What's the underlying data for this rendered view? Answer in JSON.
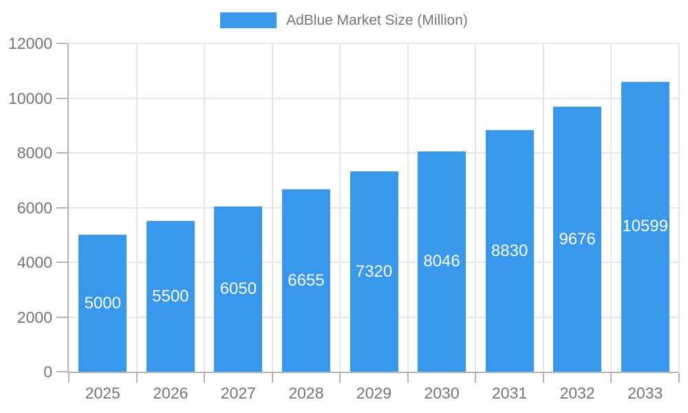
{
  "chart_data": {
    "type": "bar",
    "title": "AdBlue Market Size (Million)",
    "categories": [
      "2025",
      "2026",
      "2027",
      "2028",
      "2029",
      "2030",
      "2031",
      "2032",
      "2033"
    ],
    "values": [
      5000,
      5500,
      6050,
      6655,
      7320,
      8046,
      8830,
      9676,
      10599
    ],
    "value_labels": [
      "5000",
      "5500",
      "6050",
      "6655",
      "7320",
      "8046",
      "8830",
      "9676",
      "10599"
    ],
    "xlabel": "",
    "ylabel": "",
    "ylim": [
      0,
      12000
    ],
    "ytick_step": 2000,
    "ytick_labels": [
      "0",
      "2000",
      "4000",
      "6000",
      "8000",
      "10000",
      "12000"
    ],
    "grid": true,
    "legend_position": "top-center",
    "value_label_position": "inside-center"
  },
  "legend": {
    "label": "AdBlue Market Size (Million)"
  },
  "colors": {
    "bar": "#3898ec",
    "grid": "#e6e6e6",
    "axis": "#b3b3b3",
    "tick_text": "#757575",
    "value_text": "#ffffff",
    "background": "#ffffff"
  }
}
